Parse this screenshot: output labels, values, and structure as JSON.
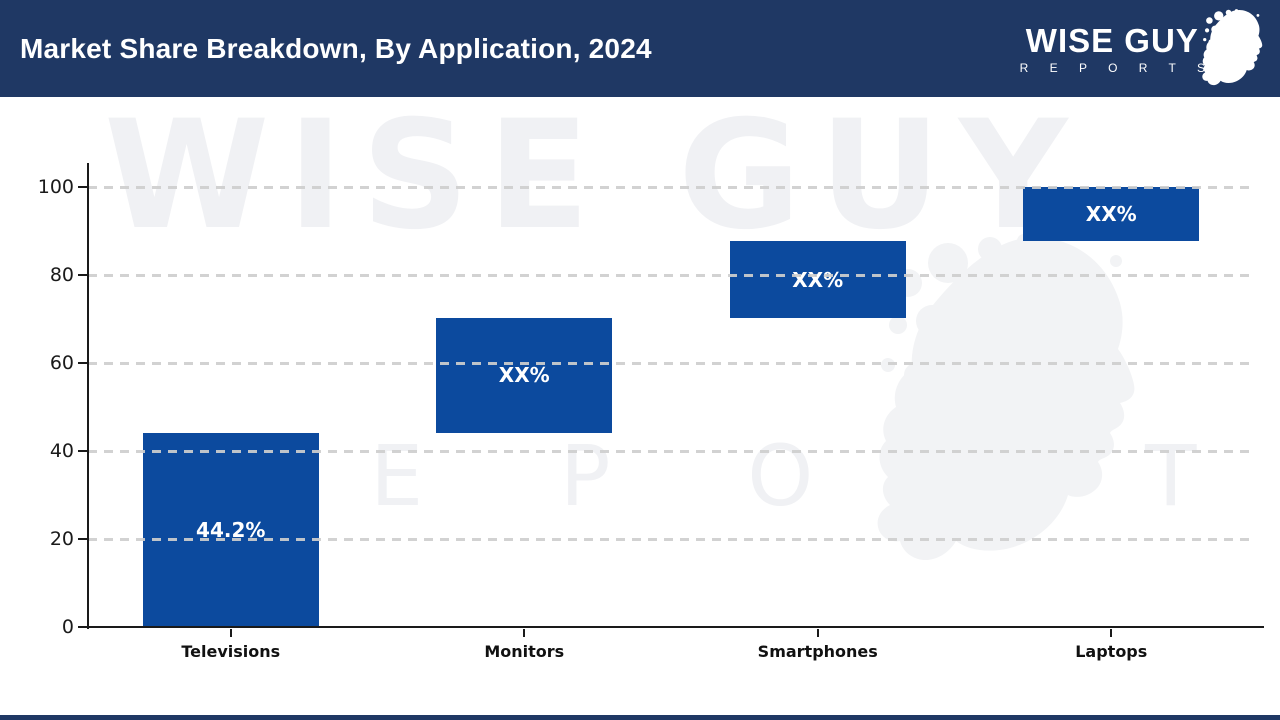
{
  "header": {
    "title": "Market Share Breakdown, By Application, 2024",
    "logo": {
      "line1": "WISE GUY",
      "line2": "R E P O R T S"
    }
  },
  "watermark": {
    "line1": "WISE GUY",
    "line2": "R E P O R T S"
  },
  "chart_data": {
    "type": "bar",
    "subtype": "waterfall",
    "title": "Market Share Breakdown, By Application, 2024",
    "xlabel": "",
    "ylabel": "",
    "categories": [
      "Televisions",
      "Monitors",
      "Smartphones",
      "Laptops"
    ],
    "segments": [
      {
        "category": "Televisions",
        "start": 0,
        "end": 44.2,
        "label": "44.2%"
      },
      {
        "category": "Monitors",
        "start": 44.2,
        "end": 70.2,
        "label": "XX%"
      },
      {
        "category": "Smartphones",
        "start": 70.2,
        "end": 87.7,
        "label": "XX%"
      },
      {
        "category": "Laptops",
        "start": 87.7,
        "end": 100,
        "label": "XX%"
      }
    ],
    "yticks": [
      0,
      20,
      40,
      60,
      80,
      100
    ],
    "ylim": [
      0,
      105.5
    ],
    "grid": "horizontal dashed, drawn over bars",
    "legend": "none"
  },
  "colors": {
    "header_background": "#1f3864",
    "bar_fill": "#0c4a9e",
    "bar_label_text": "#ffffff",
    "grid_line": "#cecece",
    "axis_line": "#1a1a1a",
    "tick_text": "#1a1a1a",
    "watermark": "#f0f1f4",
    "footer_strip": "#1f3864"
  }
}
